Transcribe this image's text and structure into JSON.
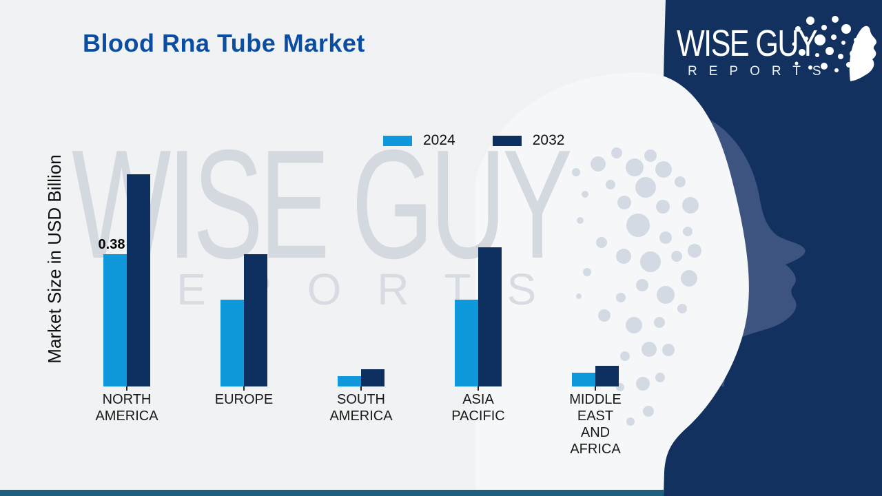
{
  "header": {
    "title": "Blood Rna Tube Market",
    "title_color": "#0b4da1"
  },
  "logo": {
    "line1": "WISE GUY",
    "line2": "REPORTS",
    "bg_color": "#13315e"
  },
  "watermark": {
    "line1": "WISE GUY",
    "line2": "REPORTS"
  },
  "colors": {
    "background": "#f1f2f3",
    "bottom_strip": "#1e5d7d",
    "navy_shape": "#13315e",
    "face_profile": "#3d5480",
    "head_fill": "#f6f7f9",
    "head_dots": "#cfd6e0"
  },
  "chart_data": {
    "type": "bar",
    "title": "Blood Rna Tube Market",
    "xlabel": "",
    "ylabel": "Market Size in USD Billion",
    "ylim": [
      0,
      0.68
    ],
    "grid": false,
    "legend_position": "top-right",
    "categories": [
      "NORTH AMERICA",
      "EUROPE",
      "SOUTH AMERICA",
      "ASIA PACIFIC",
      "MIDDLE EAST AND AFRICA"
    ],
    "category_lines": [
      [
        "NORTH",
        "AMERICA"
      ],
      [
        "EUROPE"
      ],
      [
        "SOUTH",
        "AMERICA"
      ],
      [
        "ASIA",
        "PACIFIC"
      ],
      [
        "MIDDLE",
        "EAST",
        "AND",
        "AFRICA"
      ]
    ],
    "series": [
      {
        "name": "2024",
        "color": "#0f99dc",
        "values": [
          0.38,
          0.25,
          0.03,
          0.25,
          0.04
        ]
      },
      {
        "name": "2032",
        "color": "#0e3060",
        "values": [
          0.61,
          0.38,
          0.05,
          0.4,
          0.06
        ]
      }
    ],
    "annotations": [
      {
        "series": "2024",
        "category": "NORTH AMERICA",
        "text": "0.38"
      }
    ]
  }
}
